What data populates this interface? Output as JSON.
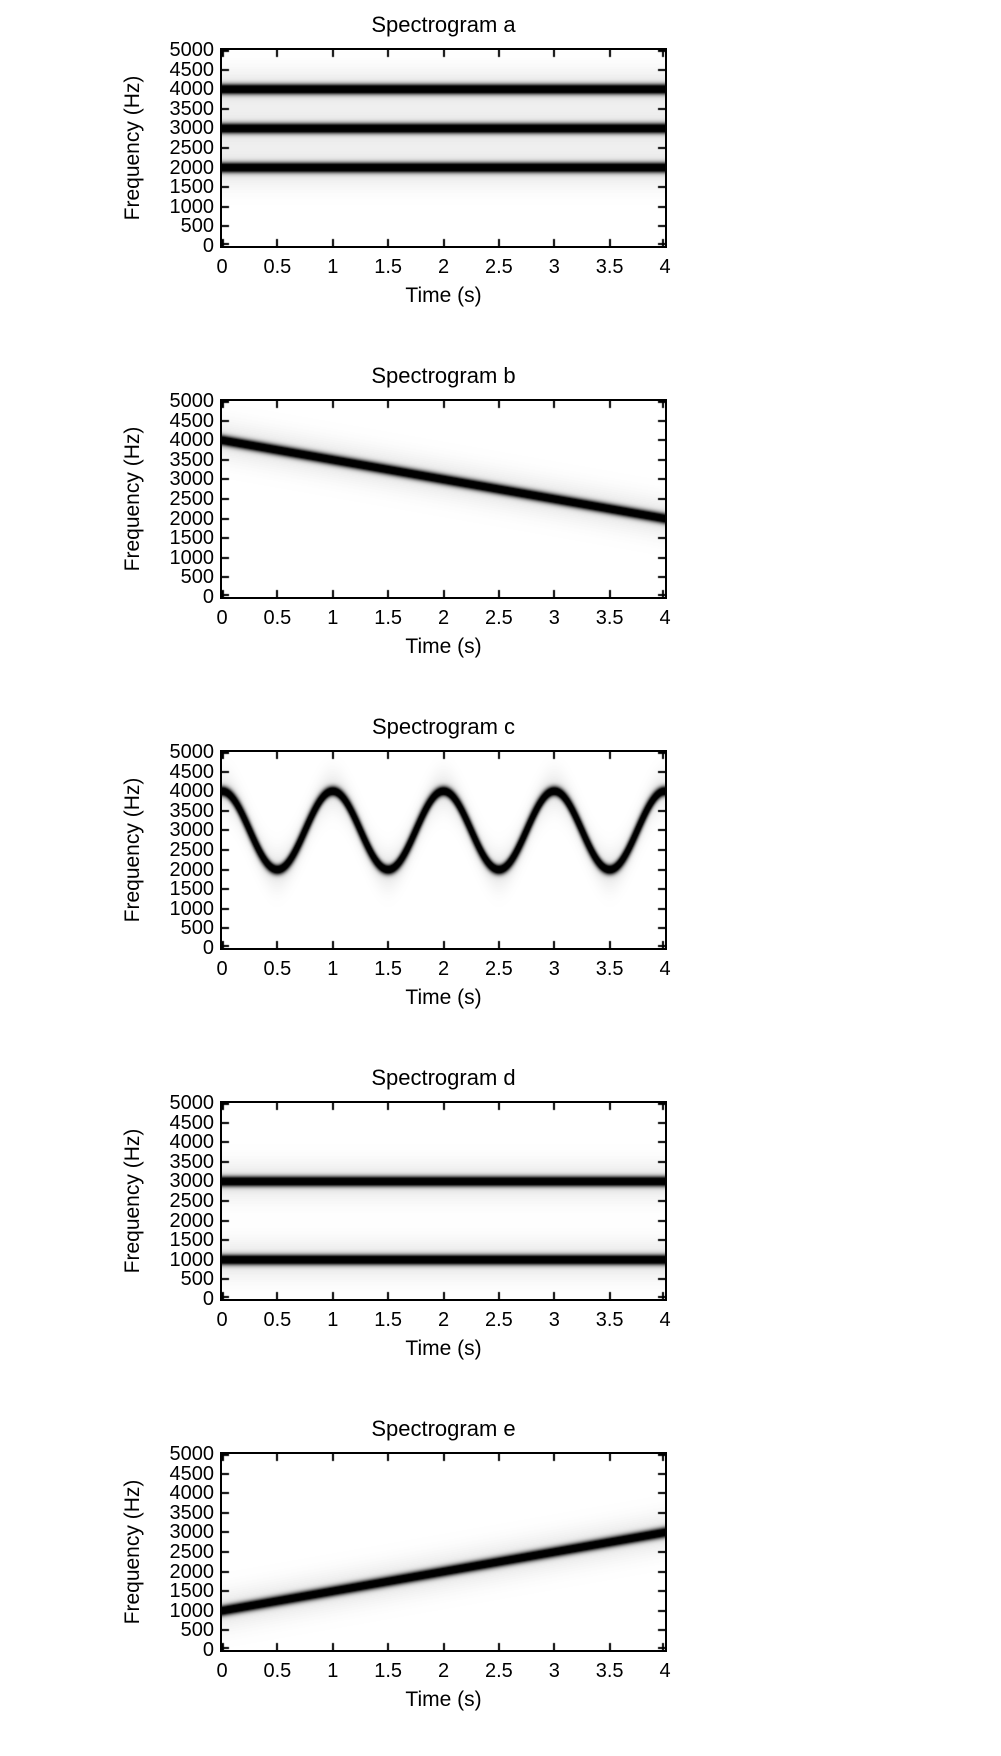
{
  "figure": {
    "background_color": "#ffffff",
    "text_color": "#000000",
    "axis_color": "#000000",
    "colormap": "inverted-grayscale"
  },
  "chart_data": [
    {
      "type": "heatmap",
      "title": "Spectrogram a",
      "xlabel": "Time (s)",
      "ylabel": "Frequency (Hz)",
      "xlim": [
        0,
        4
      ],
      "ylim": [
        0,
        5000
      ],
      "xtick_labels": [
        "0",
        "0.5",
        "1",
        "1.5",
        "2",
        "2.5",
        "3",
        "3.5",
        "4"
      ],
      "ytick_labels": [
        "0",
        "500",
        "1000",
        "1500",
        "2000",
        "2500",
        "3000",
        "3500",
        "4000",
        "4500",
        "5000"
      ],
      "grid": false,
      "legend": "none",
      "colormap": "inverted-grayscale",
      "signals": [
        {
          "kind": "tone",
          "freq_hz": 4000
        },
        {
          "kind": "tone",
          "freq_hz": 3000
        },
        {
          "kind": "tone",
          "freq_hz": 2000
        }
      ]
    },
    {
      "type": "heatmap",
      "title": "Spectrogram b",
      "xlabel": "Time (s)",
      "ylabel": "Frequency (Hz)",
      "xlim": [
        0,
        4
      ],
      "ylim": [
        0,
        5000
      ],
      "xtick_labels": [
        "0",
        "0.5",
        "1",
        "1.5",
        "2",
        "2.5",
        "3",
        "3.5",
        "4"
      ],
      "ytick_labels": [
        "0",
        "500",
        "1000",
        "1500",
        "2000",
        "2500",
        "3000",
        "3500",
        "4000",
        "4500",
        "5000"
      ],
      "grid": false,
      "legend": "none",
      "colormap": "inverted-grayscale",
      "signals": [
        {
          "kind": "linear_chirp",
          "f_start_hz": 4000,
          "f_end_hz": 2000
        }
      ]
    },
    {
      "type": "heatmap",
      "title": "Spectrogram c",
      "xlabel": "Time (s)",
      "ylabel": "Frequency (Hz)",
      "xlim": [
        0,
        4
      ],
      "ylim": [
        0,
        5000
      ],
      "xtick_labels": [
        "0",
        "0.5",
        "1",
        "1.5",
        "2",
        "2.5",
        "3",
        "3.5",
        "4"
      ],
      "ytick_labels": [
        "0",
        "500",
        "1000",
        "1500",
        "2000",
        "2500",
        "3000",
        "3500",
        "4000",
        "4500",
        "5000"
      ],
      "grid": false,
      "legend": "none",
      "colormap": "inverted-grayscale",
      "signals": [
        {
          "kind": "sinusoidal_fm",
          "center_hz": 3000,
          "deviation_hz": 1000,
          "period_s": 1.0,
          "waveform": "cos"
        }
      ]
    },
    {
      "type": "heatmap",
      "title": "Spectrogram d",
      "xlabel": "Time (s)",
      "ylabel": "Frequency (Hz)",
      "xlim": [
        0,
        4
      ],
      "ylim": [
        0,
        5000
      ],
      "xtick_labels": [
        "0",
        "0.5",
        "1",
        "1.5",
        "2",
        "2.5",
        "3",
        "3.5",
        "4"
      ],
      "ytick_labels": [
        "0",
        "500",
        "1000",
        "1500",
        "2000",
        "2500",
        "3000",
        "3500",
        "4000",
        "4500",
        "5000"
      ],
      "grid": false,
      "legend": "none",
      "colormap": "inverted-grayscale",
      "signals": [
        {
          "kind": "tone",
          "freq_hz": 3000
        },
        {
          "kind": "tone",
          "freq_hz": 1000
        }
      ]
    },
    {
      "type": "heatmap",
      "title": "Spectrogram e",
      "xlabel": "Time (s)",
      "ylabel": "Frequency (Hz)",
      "xlim": [
        0,
        4
      ],
      "ylim": [
        0,
        5000
      ],
      "xtick_labels": [
        "0",
        "0.5",
        "1",
        "1.5",
        "2",
        "2.5",
        "3",
        "3.5",
        "4"
      ],
      "ytick_labels": [
        "0",
        "500",
        "1000",
        "1500",
        "2000",
        "2500",
        "3000",
        "3500",
        "4000",
        "4500",
        "5000"
      ],
      "grid": false,
      "legend": "none",
      "colormap": "inverted-grayscale",
      "signals": [
        {
          "kind": "linear_chirp",
          "f_start_hz": 1000,
          "f_end_hz": 3000
        }
      ]
    }
  ]
}
